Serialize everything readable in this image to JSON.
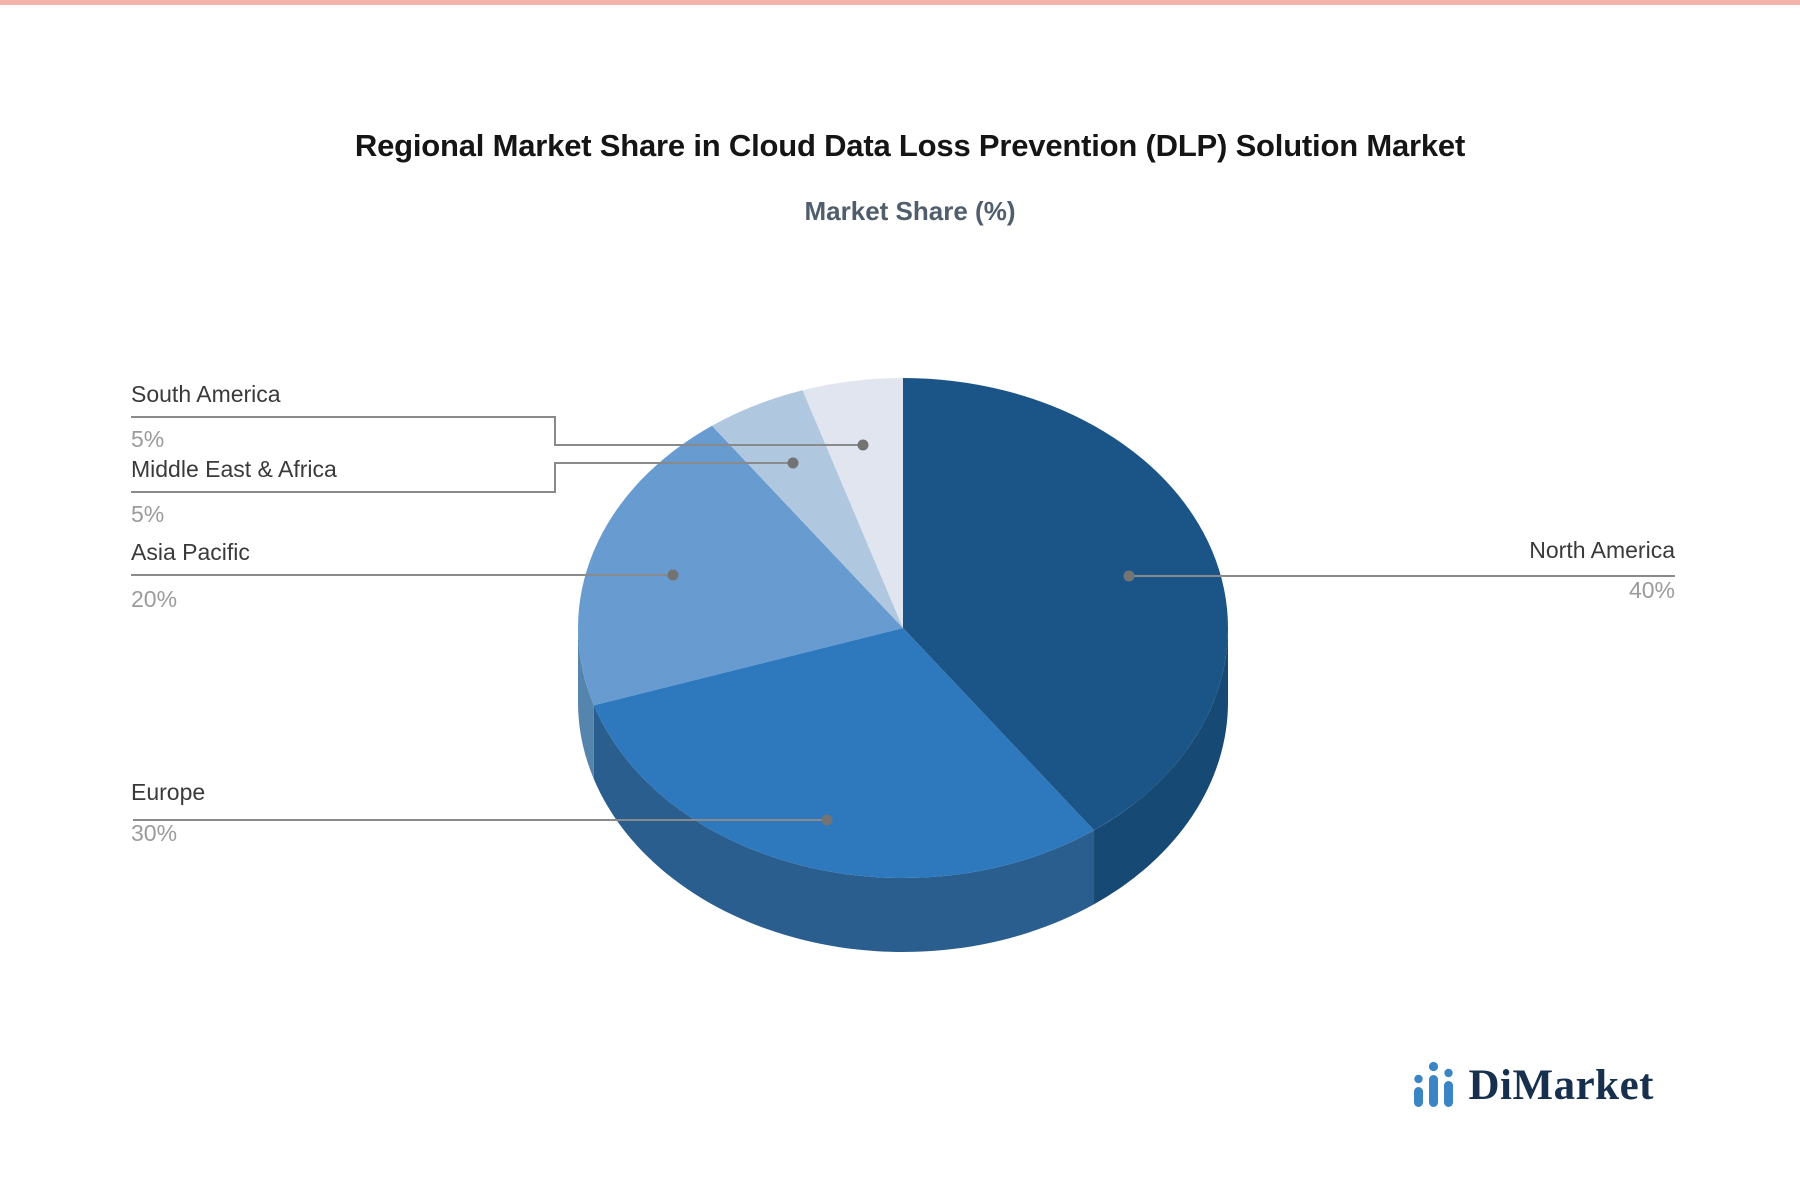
{
  "title": "Regional Market Share in Cloud Data Loss Prevention (DLP) Solution Market",
  "subtitle": "Market Share (%)",
  "top_accent_color": "#f2b4ab",
  "brand": {
    "name": "DiMarket",
    "icon": "bar-chart-dots-icon",
    "icon_color": "#3c85c5",
    "text_color": "#17304d"
  },
  "palette": {
    "leader_line": "#8a8a8a",
    "leader_dot": "#737373",
    "label_text": "#3a3a3a",
    "percent_text": "#9b9b9b",
    "title_text": "#151515",
    "subtitle_text": "#4f5d6d"
  },
  "chart_data": {
    "type": "pie",
    "style": "3d",
    "title": "Regional Market Share in Cloud Data Loss Prevention (DLP) Solution Market",
    "subtitle": "Market Share (%)",
    "unit": "%",
    "start_angle_deg": 0,
    "direction": "clockwise",
    "legend": "callout-labels",
    "slices": [
      {
        "label": "North America",
        "value": 40,
        "pct_label": "40%",
        "color": "#1b5587",
        "side_color": "#164973"
      },
      {
        "label": "Europe",
        "value": 30,
        "pct_label": "30%",
        "color": "#2e79bd",
        "side_color": "#2a5e8e"
      },
      {
        "label": "Asia Pacific",
        "value": 20,
        "pct_label": "20%",
        "color": "#689cd0",
        "side_color": "#5584ad"
      },
      {
        "label": "Middle East & Africa",
        "value": 5,
        "pct_label": "5%",
        "color": "#b0c7e0",
        "side_color": "#8fa9c4"
      },
      {
        "label": "South America",
        "value": 5,
        "pct_label": "5%",
        "color": "#e0e5ef",
        "side_color": "#bcc4d3"
      }
    ]
  }
}
